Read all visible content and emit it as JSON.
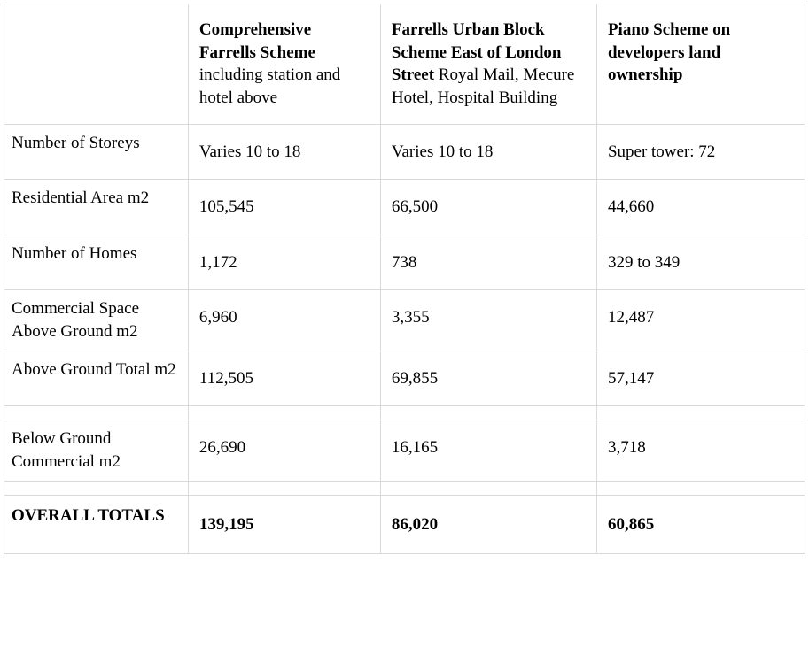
{
  "table": {
    "type": "table",
    "font_family": "Georgia, serif",
    "base_fontsize": 19,
    "border_color": "#d9d9d9",
    "text_color": "#000000",
    "background_color": "#ffffff",
    "column_widths_pct": [
      23,
      24,
      27,
      26
    ],
    "header": {
      "c0": "",
      "c1_bold": "Comprehensive Farrells Scheme",
      "c1_sub": "including station and hotel above",
      "c2_bold": "Farrells Urban Block Scheme East of London Street",
      "c2_sub": "Royal Mail, Mecure Hotel, Hospital Building",
      "c3_bold": "Piano Scheme on developers land ownership",
      "c3_sub": ""
    },
    "rows": [
      {
        "label": "Number of Storeys",
        "c1": "Varies 10 to 18",
        "c2": "Varies 10 to 18",
        "c3": " Super tower: 72"
      },
      {
        "label": "Residential Area m2",
        "c1": "105,545",
        "c2": "66,500",
        "c3": "44,660"
      },
      {
        "label": "Number of Homes",
        "c1": "1,172",
        "c2": "738",
        "c3": "329 to 349"
      },
      {
        "label": "Commercial Space Above Ground m2",
        "c1": "6,960",
        "c2": "3,355",
        "c3": "12,487"
      },
      {
        "label": "Above Ground Total m2",
        "c1": "112,505",
        "c2": "69,855",
        "c3": "57,147"
      }
    ],
    "rows2": [
      {
        "label": "Below Ground Commercial m2",
        "c1": "26,690",
        "c2": "16,165",
        "c3": "3,718"
      }
    ],
    "totals": {
      "label": "OVERALL TOTALS",
      "c1": "139,195",
      "c2": "86,020",
      "c3": "60,865"
    }
  }
}
